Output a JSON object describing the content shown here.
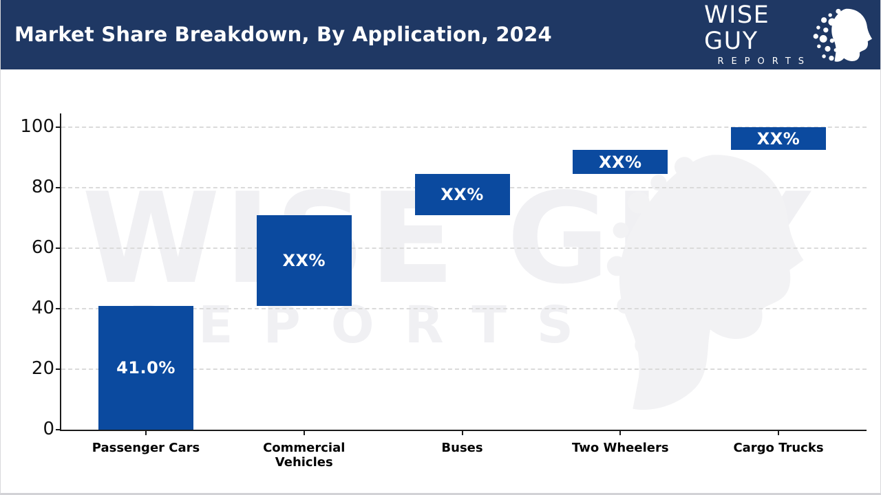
{
  "header": {
    "title": "Market Share Breakdown, By Application, 2024",
    "background_color": "#1f3864",
    "logo": {
      "line1": "WISE GUY",
      "line2": "REPORTS"
    }
  },
  "watermark": {
    "line1": "WISE GUY",
    "line2": "REPORTS"
  },
  "chart_data": {
    "type": "bar",
    "variant": "floating-segment (waterfall style market share)",
    "title": "Market Share Breakdown, By Application, 2024",
    "categories": [
      "Passenger Cars",
      "Commercial Vehicles",
      "Buses",
      "Two Wheelers",
      "Cargo Trucks"
    ],
    "series": [
      {
        "name": "Market Share (%)",
        "segments": [
          {
            "category": "Passenger Cars",
            "start": 0,
            "end": 41,
            "label": "41.0%"
          },
          {
            "category": "Commercial Vehicles",
            "start": 41,
            "end": 71,
            "label": "XX%"
          },
          {
            "category": "Buses",
            "start": 71,
            "end": 84.5,
            "label": "XX%"
          },
          {
            "category": "Two Wheelers",
            "start": 84.5,
            "end": 92.5,
            "label": "XX%"
          },
          {
            "category": "Cargo Trucks",
            "start": 92.5,
            "end": 100,
            "label": "XX%"
          }
        ]
      }
    ],
    "xlabel": "",
    "ylabel": "",
    "ylim": [
      0,
      105
    ],
    "yticks": [
      0,
      20,
      40,
      60,
      80,
      100
    ],
    "grid": "horizontal dashed",
    "legend": "none",
    "bar_color": "#0b4a9f",
    "bar_label_color": "#ffffff"
  }
}
